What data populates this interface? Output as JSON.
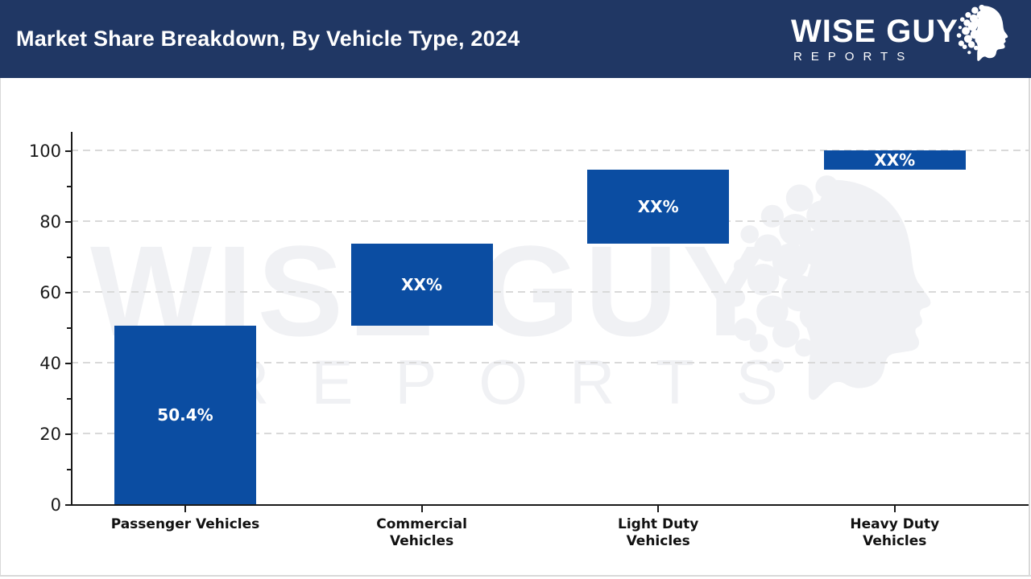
{
  "header": {
    "title": "Market Share Breakdown, By Vehicle Type, 2024",
    "logo": {
      "name": "WISE GUY",
      "sub": "REPORTS"
    }
  },
  "watermark": {
    "line1": "WISE GUY",
    "line2": "REPORTS"
  },
  "colors": {
    "header_bg": "#203764",
    "bar": "#0b4da2",
    "grid": "#d9d9d9",
    "axis": "#1a1a1a",
    "value_label": "#ffffff",
    "watermark": "#f0f1f4"
  },
  "chart_data": {
    "type": "bar",
    "subtype": "waterfall",
    "title": "Market Share Breakdown, By Vehicle Type, 2024",
    "xlabel": "",
    "ylabel": "",
    "ylim": [
      0,
      100
    ],
    "yticks": [
      0,
      20,
      40,
      60,
      80,
      100
    ],
    "minor_yticks": [
      10,
      30,
      50,
      70,
      90
    ],
    "grid": "horizontal-dashed",
    "legend": "none",
    "categories": [
      "Passenger Vehicles",
      "Commercial Vehicles",
      "Light Duty Vehicles",
      "Heavy Duty Vehicles"
    ],
    "category_lines": [
      [
        "Passenger Vehicles"
      ],
      [
        "Commercial",
        "Vehicles"
      ],
      [
        "Light Duty",
        "Vehicles"
      ],
      [
        "Heavy Duty",
        "Vehicles"
      ]
    ],
    "segments": [
      {
        "category": "Passenger Vehicles",
        "start": 0,
        "end": 50.4,
        "label": "50.4%"
      },
      {
        "category": "Commercial Vehicles",
        "start": 50.4,
        "end": 73.6,
        "label": "XX%"
      },
      {
        "category": "Light Duty Vehicles",
        "start": 73.6,
        "end": 94.6,
        "label": "XX%"
      },
      {
        "category": "Heavy Duty Vehicles",
        "start": 94.6,
        "end": 100,
        "label": "XX%"
      }
    ]
  }
}
